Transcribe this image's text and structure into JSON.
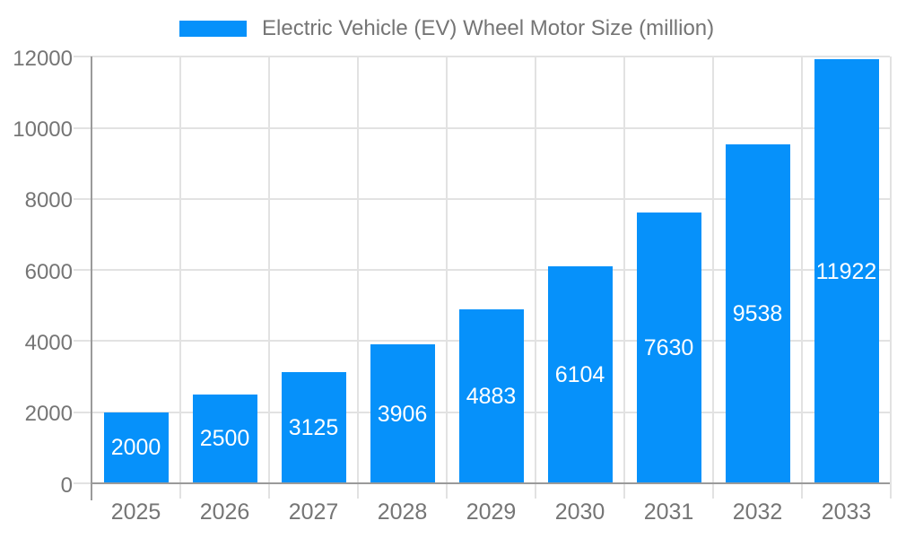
{
  "chart_data": {
    "type": "bar",
    "title": "",
    "xlabel": "",
    "ylabel": "",
    "categories": [
      "2025",
      "2026",
      "2027",
      "2028",
      "2029",
      "2030",
      "2031",
      "2032",
      "2033"
    ],
    "series": [
      {
        "name": "Electric Vehicle (EV) Wheel Motor Size (million)",
        "values": [
          2000,
          2500,
          3125,
          3906,
          4883,
          6104,
          7630,
          9538,
          11922
        ]
      }
    ],
    "ylim": [
      0,
      12000
    ],
    "yticks": [
      0,
      2000,
      4000,
      6000,
      8000,
      10000,
      12000
    ],
    "grid": true,
    "legend_position": "top",
    "value_label_position": "inside-center",
    "colors": {
      "bar": "#0691fa",
      "value_label": "#ffffff",
      "grid_line": "#e2e2e2",
      "axis_line": "#9a9a9a",
      "tick_label": "#757575",
      "legend_text": "#757575",
      "background": "#ffffff"
    }
  }
}
